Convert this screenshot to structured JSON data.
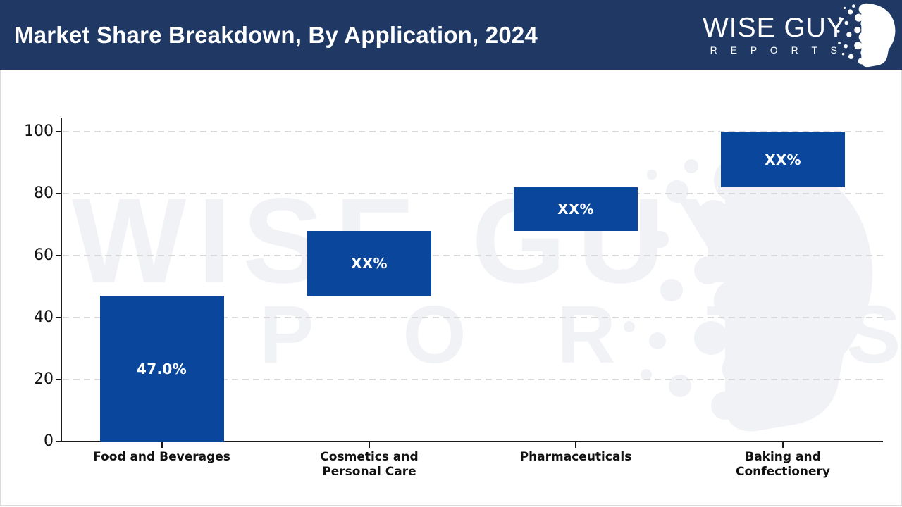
{
  "header": {
    "title": "Market Share Breakdown, By Application, 2024",
    "logo": {
      "brand": "WISE GUY",
      "sub": "R E P O R T S"
    }
  },
  "watermark": {
    "big": "WISE GUY",
    "small": "P O R T S"
  },
  "chart_data": {
    "type": "bar",
    "subtype": "floating-waterfall",
    "title": "Market Share Breakdown, By Application, 2024",
    "xlabel": "",
    "ylabel": "",
    "ylim": [
      0,
      100
    ],
    "yticks": [
      0,
      20,
      40,
      60,
      80,
      100
    ],
    "grid": {
      "horizontal": true,
      "style": "dashed",
      "at": [
        20,
        40,
        60,
        80,
        100
      ]
    },
    "legend": "none",
    "bar_color": "#0a469b",
    "bar_label_color": "#ffffff",
    "categories": [
      "Food and Beverages",
      "Cosmetics and Personal Care",
      "Pharmaceuticals",
      "Baking and Confectionery"
    ],
    "category_label_lines": [
      [
        "Food and Beverages"
      ],
      [
        "Cosmetics and",
        "Personal Care"
      ],
      [
        "Pharmaceuticals"
      ],
      [
        "Baking and",
        "Confectionery"
      ]
    ],
    "segments": [
      {
        "category": "Food and Beverages",
        "from": 0,
        "to": 47,
        "label": "47.0%"
      },
      {
        "category": "Cosmetics and Personal Care",
        "from": 47,
        "to": 68,
        "label": "XX%"
      },
      {
        "category": "Pharmaceuticals",
        "from": 68,
        "to": 82,
        "label": "XX%"
      },
      {
        "category": "Baking and Confectionery",
        "from": 82,
        "to": 100,
        "label": "XX%"
      }
    ]
  },
  "colors": {
    "header_bg": "#1f3864",
    "bar": "#0a469b",
    "axis": "#1a1a1a",
    "grid_dash": "#d9d9d9",
    "watermark": "#f1f2f5",
    "frame_border": "#d9d9d9"
  }
}
